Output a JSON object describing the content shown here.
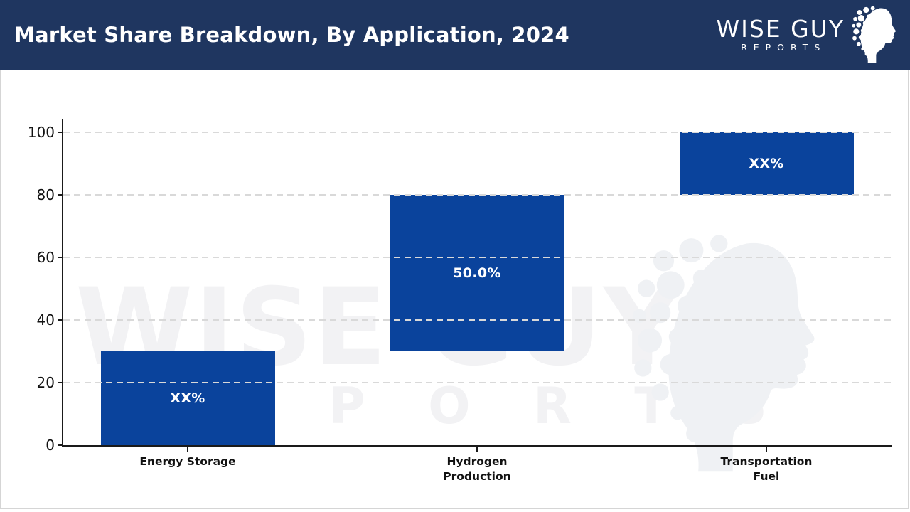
{
  "header": {
    "title": "Market Share Breakdown, By Application, 2024",
    "logo": {
      "line1": "WISE GUY",
      "line2": "REPORTS"
    }
  },
  "watermark": {
    "line1": "WISE GUY",
    "line2": "R E P O R T S"
  },
  "chart_data": {
    "type": "bar",
    "variant": "floating-range-bars",
    "title": "Market Share Breakdown, By Application, 2024",
    "categories": [
      "Energy Storage",
      "Hydrogen Production",
      "Transportation Fuel"
    ],
    "category_display_lines": [
      [
        "Energy Storage"
      ],
      [
        "Hydrogen",
        "Production"
      ],
      [
        "Transportation",
        "Fuel"
      ]
    ],
    "series": [
      {
        "name": "Market Share",
        "ranges": [
          [
            0,
            30
          ],
          [
            30,
            80
          ],
          [
            80,
            100
          ]
        ],
        "labels": [
          "XX%",
          "50.0%",
          "XX%"
        ]
      }
    ],
    "xlabel": "",
    "ylabel": "",
    "ylim": [
      0,
      105
    ],
    "yticks": [
      0,
      20,
      40,
      60,
      80,
      100
    ],
    "grid": "dashed-horizontal-over-bars",
    "legend": "none"
  },
  "colors": {
    "header_bg": "#1f3660",
    "bar": "#0a439c",
    "bar_label": "#ffffff",
    "grid": "#d9d9d9",
    "axis": "#1a1a1a",
    "watermark_text": "#f2f2f4",
    "watermark_head": "#eff1f4",
    "card_border": "#d5d5d5"
  }
}
